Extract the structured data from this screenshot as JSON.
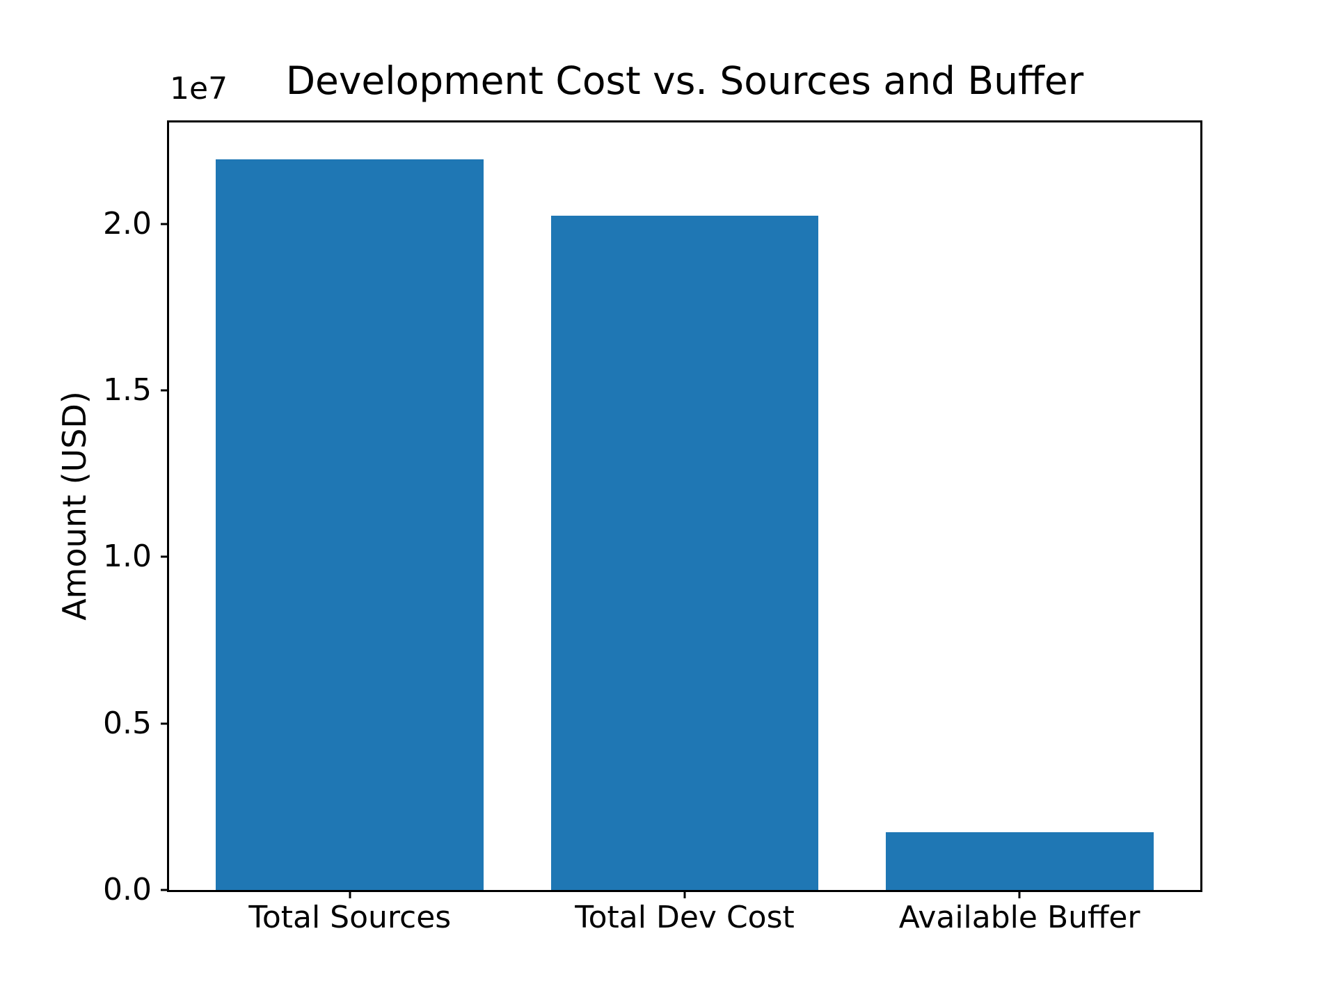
{
  "chart_data": {
    "type": "bar",
    "title": "Development Cost vs. Sources and Buffer",
    "ylabel": "Amount (USD)",
    "xlabel": "",
    "y_offset_label": "1e7",
    "categories": [
      "Total Sources",
      "Total Dev Cost",
      "Available Buffer"
    ],
    "values": [
      21950000,
      20260000,
      1730000
    ],
    "ylim": [
      0,
      23050000
    ],
    "yticks": {
      "values": [
        0,
        5000000,
        10000000,
        15000000,
        20000000
      ],
      "labels": [
        "0.0",
        "0.5",
        "1.0",
        "1.5",
        "2.0"
      ]
    },
    "bar_width_fraction": 0.8,
    "x_margin_fraction": 0.05,
    "bar_color": "#1f77b4",
    "axis_color": "#000000",
    "background_color": "#ffffff",
    "grid": false,
    "legend_position": "none"
  }
}
